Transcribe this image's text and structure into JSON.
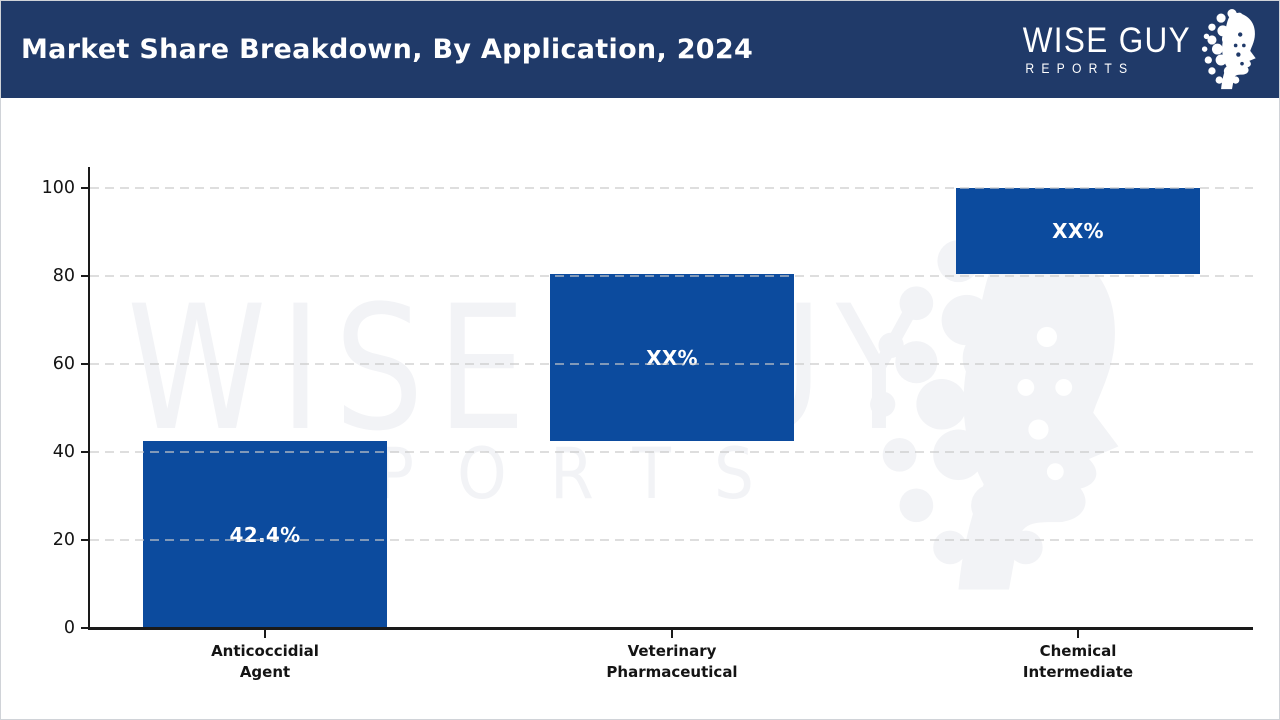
{
  "header": {
    "title": "Market Share Breakdown, By Application, 2024",
    "logo": {
      "line1": "WISE GUY",
      "line2": "REPORTS"
    }
  },
  "watermark": {
    "line1": "WISE GUY",
    "line2": "REPORTS"
  },
  "colors": {
    "header_bg": "#203a69",
    "bar_fill": "#0c4b9e",
    "grid_line": "#c9c9c9",
    "axis_line": "#1a1a1a",
    "text_dark": "#141414",
    "label_on_bar": "#ffffff",
    "watermark": "#f2f3f6",
    "page_border": "#d0d3d8"
  },
  "chart_data": {
    "type": "bar",
    "subtype": "waterfall",
    "title": "Market Share Breakdown, By Application, 2024",
    "xlabel": "",
    "ylabel": "",
    "ylim": [
      0,
      100
    ],
    "yticks": [
      100,
      80,
      60,
      40,
      20,
      0
    ],
    "ytick_labels": [
      "100",
      "80",
      "60",
      "40",
      "20",
      "0"
    ],
    "grid": "horizontal-dashed",
    "legend": "none",
    "categories": [
      {
        "label": "Anticoccidial Agent",
        "line1": "Anticoccidial",
        "line2": "Agent"
      },
      {
        "label": "Veterinary Pharmaceutical",
        "line1": "Veterinary",
        "line2": "Pharmaceutical"
      },
      {
        "label": "Chemical Intermediate",
        "line1": "Chemical",
        "line2": "Intermediate"
      }
    ],
    "bars": [
      {
        "category": "Anticoccidial Agent",
        "start": 0,
        "end": 42.4,
        "segment_value": 42.4,
        "label": "42.4%"
      },
      {
        "category": "Veterinary Pharmaceutical",
        "start": 42.4,
        "end": 80.4,
        "segment_value": 38.0,
        "label": "XX%"
      },
      {
        "category": "Chemical Intermediate",
        "start": 80.4,
        "end": 100,
        "segment_value": 19.6,
        "label": "XX%"
      }
    ]
  }
}
